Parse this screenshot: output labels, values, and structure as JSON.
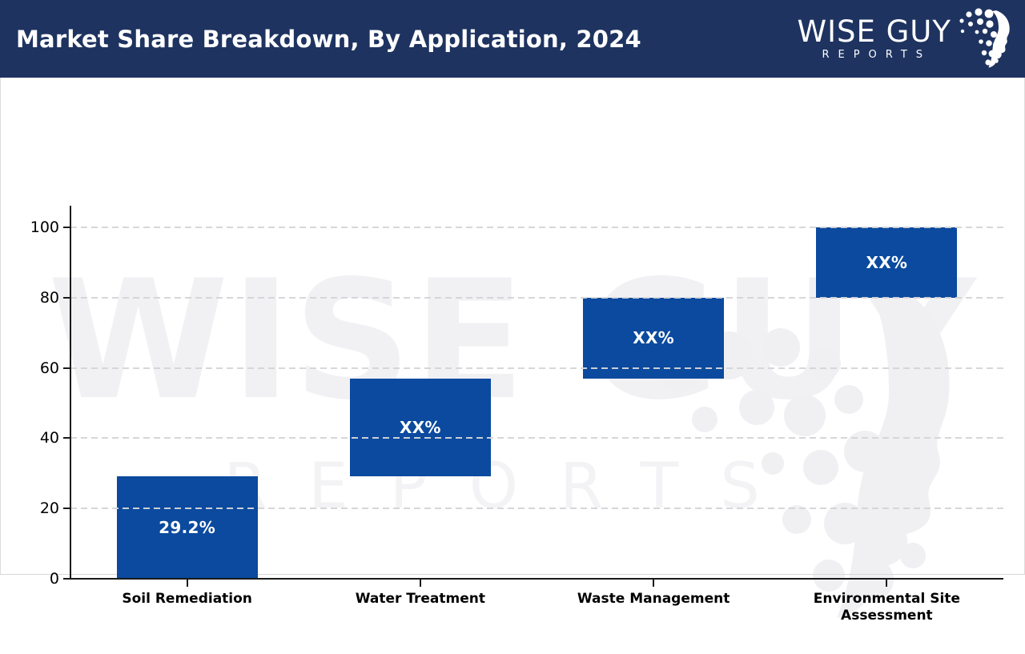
{
  "header": {
    "title": "Market Share Breakdown, By Application, 2024",
    "bg_color": "#1e3360",
    "logo": {
      "line1": "WISE GUY",
      "line2": "REPORTS"
    }
  },
  "watermark": {
    "line1": "WISE GUY",
    "line2": "REPORTS"
  },
  "chart_data": {
    "type": "bar",
    "subtype": "waterfall",
    "title": "Market Share Breakdown, By Application, 2024",
    "categories": [
      "Soil Remediation",
      "Water Treatment",
      "Waste Management",
      "Environmental Site Assessment"
    ],
    "segments": [
      {
        "label": "29.2%",
        "start": 0,
        "end": 29.2
      },
      {
        "label": "XX%",
        "start": 29.2,
        "end": 57
      },
      {
        "label": "XX%",
        "start": 57,
        "end": 80
      },
      {
        "label": "XX%",
        "start": 80,
        "end": 100
      }
    ],
    "xlabel": "",
    "ylabel": "",
    "ylim": [
      0,
      100
    ],
    "yticks": [
      0,
      20,
      40,
      60,
      80,
      100
    ],
    "grid": "dashed-horizontal-above-bars",
    "legend": "none",
    "bar_color": "#0b4a9e",
    "bar_label_color": "#ffffff",
    "axis_color": "#1a1a1a"
  }
}
